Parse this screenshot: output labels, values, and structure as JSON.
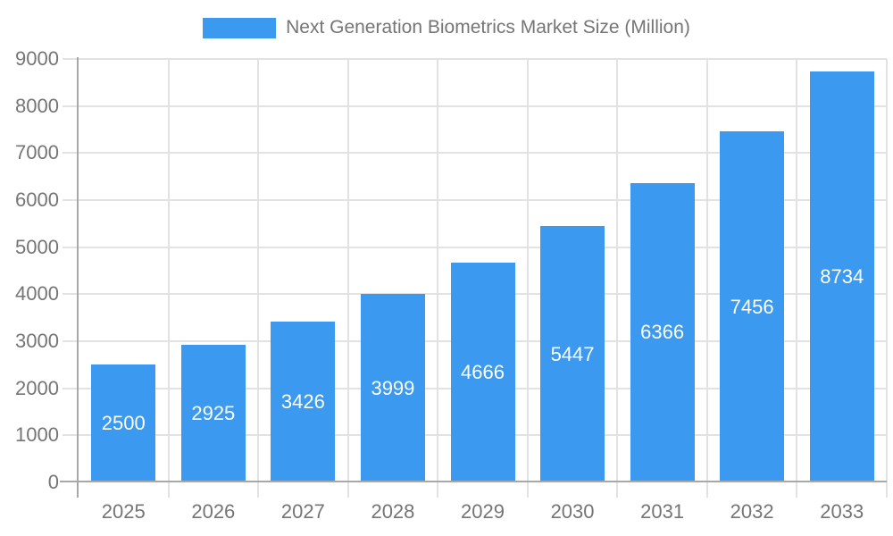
{
  "legend": {
    "label": "Next Generation Biometrics Market Size (Million)"
  },
  "chart_data": {
    "type": "bar",
    "title": "Next Generation Biometrics Market Size (Million)",
    "series_name": "Next Generation Biometrics Market Size (Million)",
    "categories": [
      "2025",
      "2026",
      "2027",
      "2028",
      "2029",
      "2030",
      "2031",
      "2032",
      "2033"
    ],
    "values": [
      2500,
      2925,
      3426,
      3999,
      4666,
      5447,
      6366,
      7456,
      8734
    ],
    "xlabel": "",
    "ylabel": "",
    "ylim": [
      0,
      9000
    ],
    "ytick_interval": 1000,
    "yticks": [
      0,
      1000,
      2000,
      3000,
      4000,
      5000,
      6000,
      7000,
      8000,
      9000
    ],
    "grid": true,
    "legend_position": "top-center",
    "bar_color": "#3B99F0",
    "value_label_color": "#ffffff",
    "axis_text_color": "#757575",
    "grid_color": "#E2E2E2",
    "axis_line_color": "#A8A8A8",
    "background_color": "#ffffff"
  }
}
